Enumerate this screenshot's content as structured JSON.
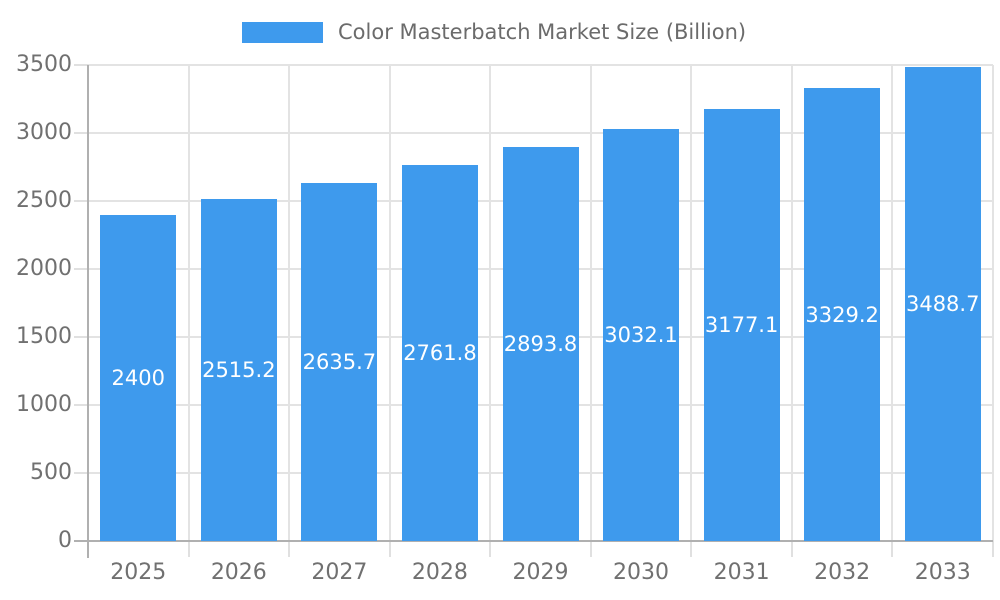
{
  "legend": {
    "label": "Color Masterbatch Market Size (Billion)"
  },
  "chart_data": {
    "type": "bar",
    "title": "Color Masterbatch Market Size (Billion)",
    "categories": [
      "2025",
      "2026",
      "2027",
      "2028",
      "2029",
      "2030",
      "2031",
      "2032",
      "2033"
    ],
    "series": [
      {
        "name": "Color Masterbatch Market Size (Billion)",
        "values": [
          2400,
          2515.2,
          2635.7,
          2761.8,
          2893.8,
          3032.1,
          3177.1,
          3329.2,
          3488.7
        ]
      }
    ],
    "value_labels": [
      "2400",
      "2515.2",
      "2635.7",
      "2761.8",
      "2893.8",
      "3032.1",
      "3177.1",
      "3329.2",
      "3488.7"
    ],
    "xlabel": "",
    "ylabel": "",
    "ylim": [
      0,
      3500
    ],
    "ytick_step": 500,
    "ytick_labels": [
      "0",
      "500",
      "1000",
      "1500",
      "2000",
      "2500",
      "3000",
      "3500"
    ],
    "grid": true,
    "legend_position": "top",
    "colors": {
      "bar": "#3e9aed",
      "gridline": "#e3e3e3",
      "tick": "#e0e0e0",
      "axis_line": "#b0b0b0",
      "axis_text": "#707070",
      "legend_text": "#6b6b6b",
      "bar_label_text": "#ffffff",
      "background": "#ffffff"
    }
  }
}
